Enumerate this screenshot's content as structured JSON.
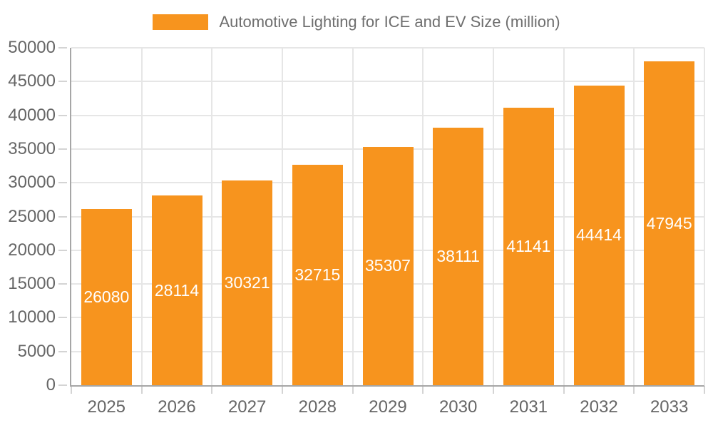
{
  "legend": {
    "label": "Automotive Lighting for ICE and EV Size (million)"
  },
  "chart_data": {
    "type": "bar",
    "title": "Automotive Lighting for ICE and EV Size (million)",
    "categories": [
      "2025",
      "2026",
      "2027",
      "2028",
      "2029",
      "2030",
      "2031",
      "2032",
      "2033"
    ],
    "series": [
      {
        "name": "Automotive Lighting for ICE and EV Size (million)",
        "values": [
          26080,
          28114,
          30321,
          32715,
          35307,
          38111,
          41141,
          44414,
          47945
        ]
      }
    ],
    "xlabel": "",
    "ylabel": "",
    "ylim": [
      0,
      50000
    ],
    "ytick_step": 5000,
    "ytick_labels": [
      "0",
      "5000",
      "10000",
      "15000",
      "20000",
      "25000",
      "30000",
      "35000",
      "40000",
      "45000",
      "50000"
    ],
    "grid": true,
    "legend_position": "top",
    "value_labels": "inside-center",
    "colors": {
      "bar": "#F7941E",
      "gridline": "#E6E6E6",
      "axis_line": "#A6A6A6",
      "tick": "#D4D4D4",
      "axis_label": "#666666",
      "title": "#6E6E6E",
      "value_label": "#FFFFFF",
      "background": "#FFFFFF"
    }
  }
}
